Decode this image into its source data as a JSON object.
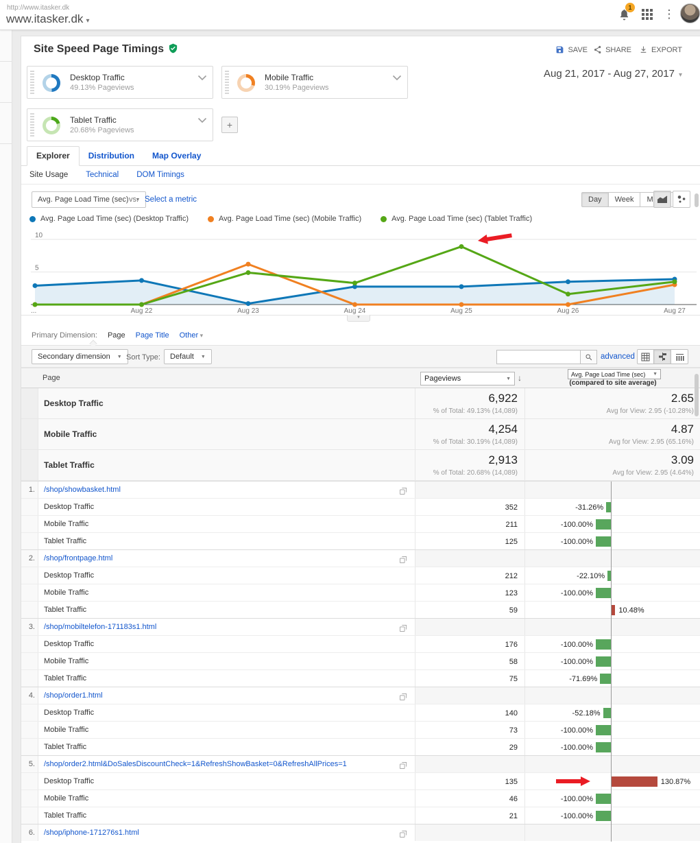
{
  "topbar": {
    "url": "http://www.itasker.dk",
    "account": "www.itasker.dk",
    "notification_count": "1"
  },
  "report": {
    "title": "Site Speed Page Timings",
    "save_label": "SAVE",
    "share_label": "SHARE",
    "export_label": "EXPORT",
    "date_range": "Aug 21, 2017 - Aug 27, 2017"
  },
  "segments": [
    {
      "name": "Desktop Traffic",
      "detail": "49.13% Pageviews",
      "pct": 49.13,
      "color": "#2079c0",
      "light": "#b3d3e8"
    },
    {
      "name": "Mobile Traffic",
      "detail": "30.19% Pageviews",
      "pct": 30.19,
      "color": "#f08021",
      "light": "#f7d3b2"
    },
    {
      "name": "Tablet Traffic",
      "detail": "20.68% Pageviews",
      "pct": 20.68,
      "color": "#4ca81a",
      "light": "#c6e5b3"
    }
  ],
  "add_segment_label": "+",
  "tabs": {
    "items": [
      "Explorer",
      "Distribution",
      "Map Overlay"
    ],
    "selected": "Explorer"
  },
  "subtabs": {
    "items": [
      "Site Usage",
      "Technical",
      "DOM Timings"
    ],
    "selected": "Site Usage"
  },
  "controls": {
    "metric_dropdown": "Avg. Page Load Time (sec)",
    "vs_label": "vs.",
    "select_metric_label": "Select a metric",
    "granularity": {
      "items": [
        "Day",
        "Week",
        "Month"
      ],
      "selected": "Day"
    }
  },
  "chart_data": {
    "type": "line",
    "title": "Avg. Page Load Time (sec) by day",
    "x": [
      "Aug 21",
      "Aug 22",
      "Aug 23",
      "Aug 24",
      "Aug 25",
      "Aug 26",
      "Aug 27"
    ],
    "x_tick_labels": [
      "...",
      "Aug 22",
      "Aug 23",
      "Aug 24",
      "Aug 25",
      "Aug 26",
      "Aug 27"
    ],
    "ylim": [
      0,
      10
    ],
    "yticks": [
      5,
      10
    ],
    "grid": true,
    "legend_position": "top",
    "series": [
      {
        "name": "Avg. Page Load Time (sec) (Desktop Traffic)",
        "color": "#0e77b7",
        "area_fill": true,
        "values": [
          2.9,
          3.7,
          0.15,
          2.75,
          2.75,
          3.5,
          3.9
        ]
      },
      {
        "name": "Avg. Page Load Time (sec) (Mobile Traffic)",
        "color": "#f08021",
        "area_fill": false,
        "values": [
          0,
          0,
          6.2,
          0,
          0,
          0,
          3.05
        ]
      },
      {
        "name": "Avg. Page Load Time (sec) (Tablet Traffic)",
        "color": "#55a716",
        "area_fill": false,
        "values": [
          0,
          0,
          4.9,
          3.3,
          8.9,
          1.6,
          3.5
        ]
      }
    ],
    "annotations": [
      {
        "type": "red-arrow",
        "target": "Tablet Traffic peak on Aug 25"
      }
    ]
  },
  "primary_dimension": {
    "label": "Primary Dimension:",
    "options": [
      "Page",
      "Page Title",
      "Other"
    ],
    "selected": "Page"
  },
  "toolbar": {
    "secondary_dimension_label": "Secondary dimension",
    "sort_type_label": "Sort Type:",
    "sort_default_label": "Default",
    "search_value": "",
    "advanced_label": "advanced"
  },
  "table": {
    "page_header": "Page",
    "pageviews_header": "Pageviews",
    "metric_header": "Avg. Page Load Time (sec)",
    "metric_note": "(compared to site average)",
    "bar_colors": {
      "positive": "#b5493d",
      "negative": "#58a65c"
    },
    "summary_rows": [
      {
        "label": "Desktop Traffic",
        "pageviews": "6,922",
        "pv_note": "% of Total: 49.13% (14,089)",
        "metric": "2.65",
        "metric_note": "Avg for View: 2.95 (-10.28%)"
      },
      {
        "label": "Mobile Traffic",
        "pageviews": "4,254",
        "pv_note": "% of Total: 30.19% (14,089)",
        "metric": "4.87",
        "metric_note": "Avg for View: 2.95 (65.16%)"
      },
      {
        "label": "Tablet Traffic",
        "pageviews": "2,913",
        "pv_note": "% of Total: 20.68% (14,089)",
        "metric": "3.09",
        "metric_note": "Avg for View: 2.95 (4.64%)"
      }
    ],
    "detail_rows": [
      {
        "index": "1.",
        "page": "/shop/showbasket.html",
        "entries": [
          {
            "label": "Desktop Traffic",
            "pageviews": "352",
            "delta_label": "-31.26%",
            "delta": -31.26
          },
          {
            "label": "Mobile Traffic",
            "pageviews": "211",
            "delta_label": "-100.00%",
            "delta": -100
          },
          {
            "label": "Tablet Traffic",
            "pageviews": "125",
            "delta_label": "-100.00%",
            "delta": -100
          }
        ]
      },
      {
        "index": "2.",
        "page": "/shop/frontpage.html",
        "entries": [
          {
            "label": "Desktop Traffic",
            "pageviews": "212",
            "delta_label": "-22.10%",
            "delta": -22.1
          },
          {
            "label": "Mobile Traffic",
            "pageviews": "123",
            "delta_label": "-100.00%",
            "delta": -100
          },
          {
            "label": "Tablet Traffic",
            "pageviews": "59",
            "delta_label": "10.48%",
            "delta": 10.48
          }
        ]
      },
      {
        "index": "3.",
        "page": "/shop/mobiltelefon-171183s1.html",
        "entries": [
          {
            "label": "Desktop Traffic",
            "pageviews": "176",
            "delta_label": "-100.00%",
            "delta": -100
          },
          {
            "label": "Mobile Traffic",
            "pageviews": "58",
            "delta_label": "-100.00%",
            "delta": -100
          },
          {
            "label": "Tablet Traffic",
            "pageviews": "75",
            "delta_label": "-71.69%",
            "delta": -71.69
          }
        ]
      },
      {
        "index": "4.",
        "page": "/shop/order1.html",
        "entries": [
          {
            "label": "Desktop Traffic",
            "pageviews": "140",
            "delta_label": "-52.18%",
            "delta": -52.18
          },
          {
            "label": "Mobile Traffic",
            "pageviews": "73",
            "delta_label": "-100.00%",
            "delta": -100
          },
          {
            "label": "Tablet Traffic",
            "pageviews": "29",
            "delta_label": "-100.00%",
            "delta": -100
          }
        ]
      },
      {
        "index": "5.",
        "page": "/shop/order2.html&DoSalesDiscountCheck=1&RefreshShowBasket=0&RefreshAllPrices=1",
        "entries": [
          {
            "label": "Desktop Traffic",
            "pageviews": "135",
            "delta_label": "130.87%",
            "delta": 130.87,
            "arrow": true
          },
          {
            "label": "Mobile Traffic",
            "pageviews": "46",
            "delta_label": "-100.00%",
            "delta": -100
          },
          {
            "label": "Tablet Traffic",
            "pageviews": "21",
            "delta_label": "-100.00%",
            "delta": -100
          }
        ]
      },
      {
        "index": "6.",
        "page": "/shop/iphone-171276s1.html",
        "entries": []
      }
    ]
  }
}
